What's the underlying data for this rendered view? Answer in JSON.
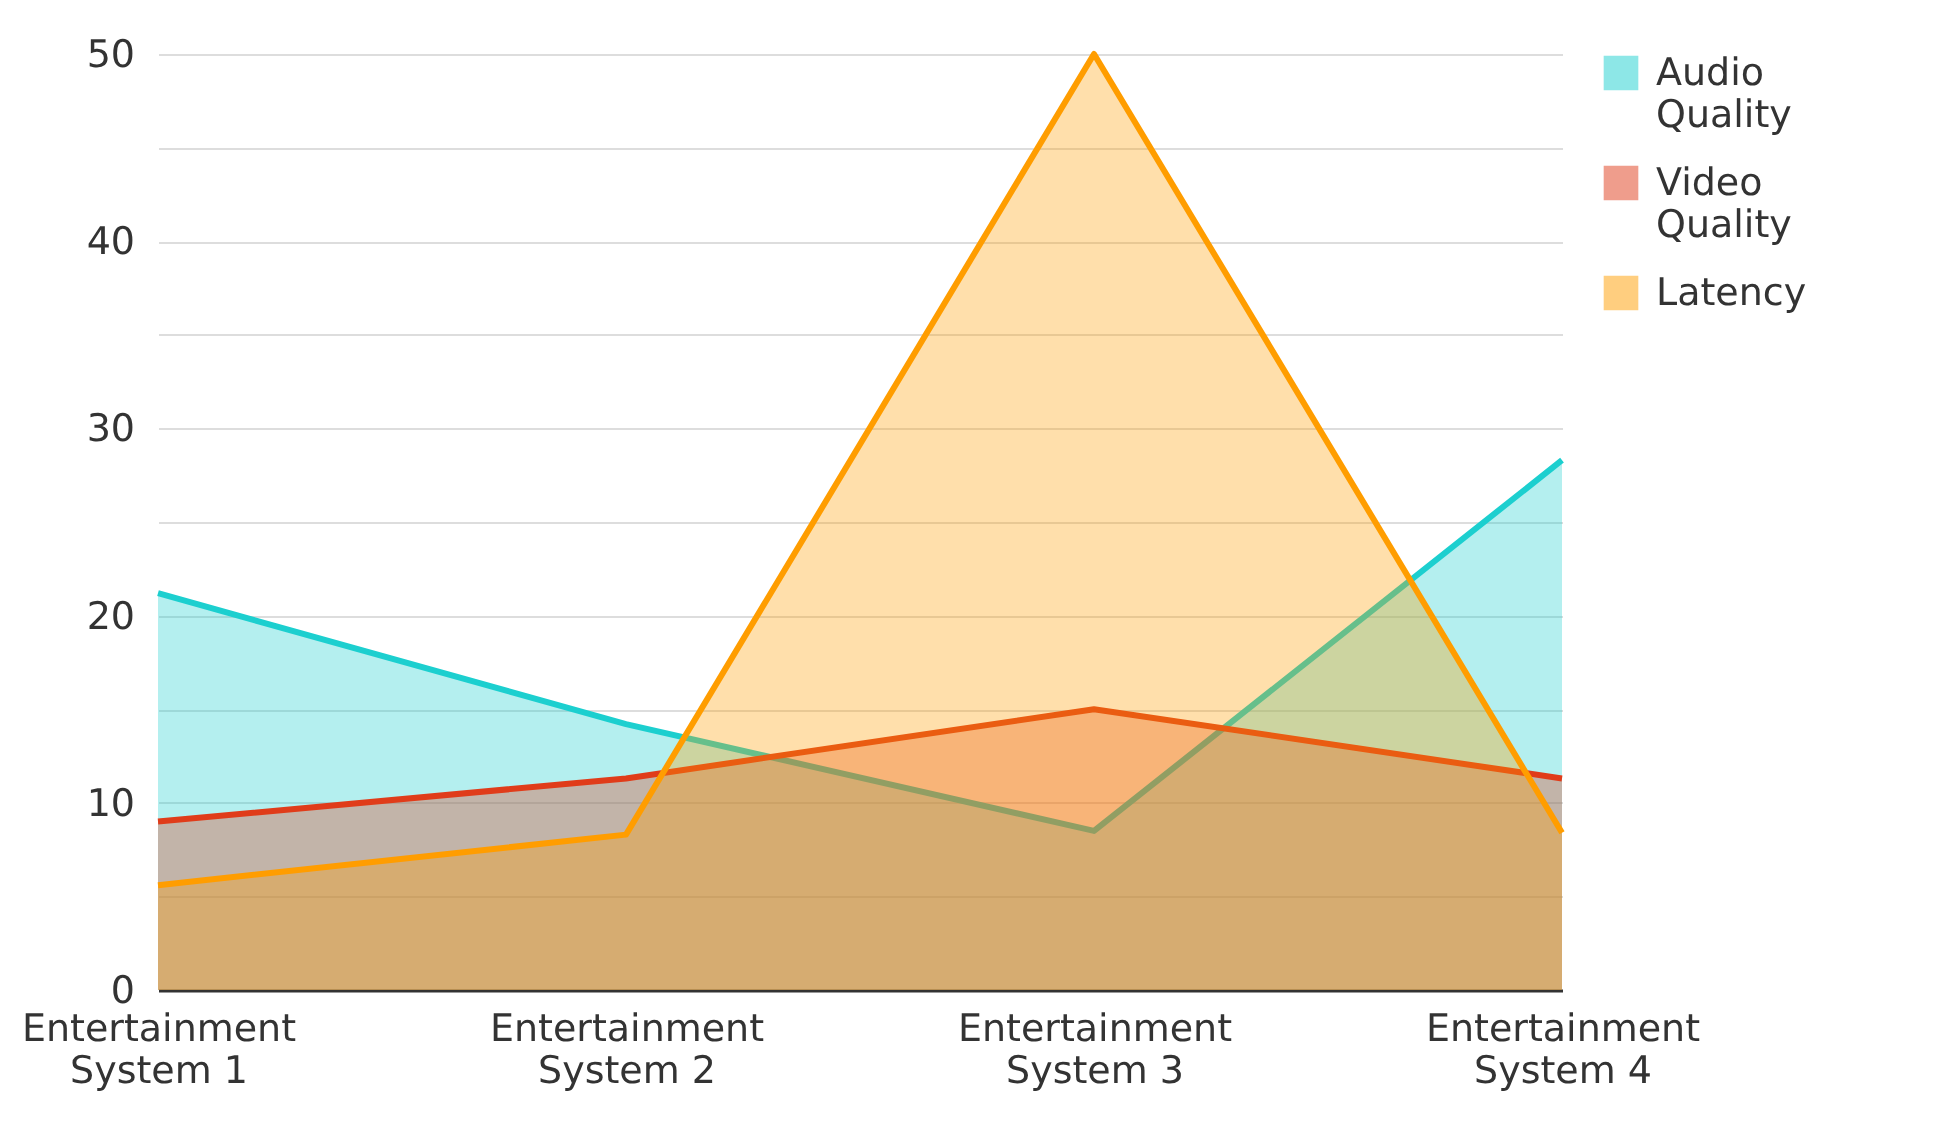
{
  "chart_data": {
    "type": "area",
    "categories": [
      "Entertainment System 1",
      "Entertainment System 2",
      "Entertainment System 3",
      "Entertainment System 4"
    ],
    "series": [
      {
        "name": "Audio Quality",
        "color": "#1ccfcf",
        "values": [
          21.2,
          14.2,
          8.5,
          28.3
        ]
      },
      {
        "name": "Video Quality",
        "color": "#e03c1a",
        "values": [
          9.0,
          11.3,
          15.0,
          11.3
        ]
      },
      {
        "name": "Latency",
        "color": "#ff9d00",
        "values": [
          5.6,
          8.3,
          50,
          8.4
        ]
      }
    ],
    "ylim": [
      0,
      50
    ],
    "yticks": [
      0,
      {
        "value": 5,
        "label": null
      },
      10,
      {
        "value": 15,
        "label": null
      },
      20,
      {
        "value": 25,
        "label": null
      },
      30,
      {
        "value": 35,
        "label": null
      },
      40,
      {
        "value": 45,
        "label": null
      },
      50
    ],
    "grid": "y",
    "legend": "right"
  }
}
